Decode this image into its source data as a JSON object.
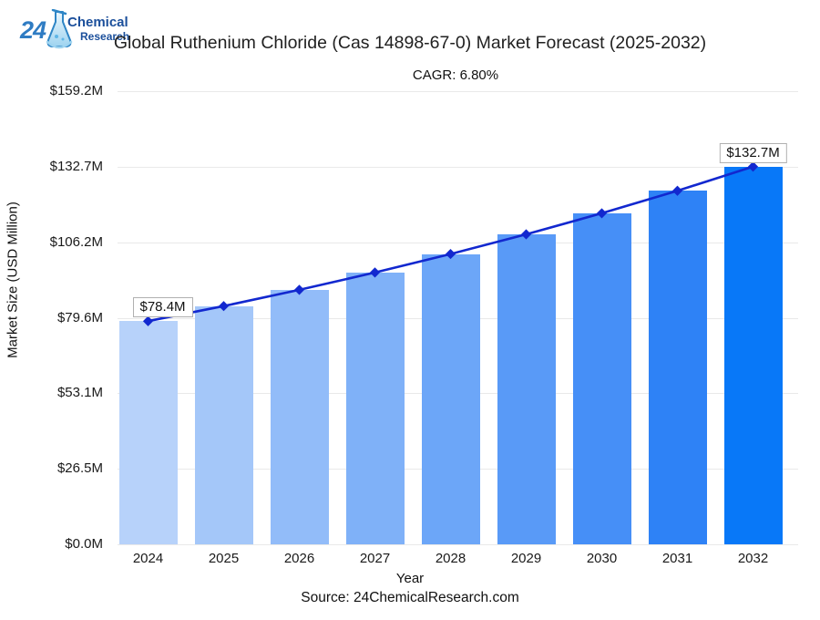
{
  "logo": {
    "number": "24",
    "line1": "Chemical",
    "line2": "Research"
  },
  "header": {
    "title": "Global Ruthenium Chloride (Cas 14898-67-0) Market Forecast (2025-2032)",
    "subtitle": "CAGR: 6.80%"
  },
  "chart_data": {
    "type": "bar",
    "categories": [
      "2024",
      "2025",
      "2026",
      "2027",
      "2028",
      "2029",
      "2030",
      "2031",
      "2032"
    ],
    "series": [
      {
        "name": "Market Size",
        "values": [
          78.4,
          83.7,
          89.4,
          95.5,
          102.0,
          108.9,
          116.3,
          124.2,
          132.7
        ]
      }
    ],
    "title": "Global Ruthenium Chloride (Cas 14898-67-0) Market Forecast (2025-2032)",
    "subtitle": "CAGR: 6.80%",
    "xlabel": "Year",
    "ylabel": "Market Size (USD Million)",
    "ylim": [
      0,
      159.2
    ],
    "grid": "horizontal",
    "yticks": [
      {
        "value": 0.0,
        "label": "$0.0M"
      },
      {
        "value": 26.5,
        "label": "$26.5M"
      },
      {
        "value": 53.1,
        "label": "$53.1M"
      },
      {
        "value": 79.6,
        "label": "$79.6M"
      },
      {
        "value": 106.2,
        "label": "$106.2M"
      },
      {
        "value": 132.7,
        "label": "$132.7M"
      },
      {
        "value": 159.2,
        "label": "$159.2M"
      }
    ],
    "annotations": [
      {
        "index": 0,
        "text": "$78.4M",
        "align": "left"
      },
      {
        "index": 8,
        "text": "$132.7M",
        "align": "center"
      }
    ],
    "bar_colors": [
      "#b7d2fa",
      "#a4c7f9",
      "#92bcf9",
      "#7fb1f8",
      "#6ca6f8",
      "#599af7",
      "#468ff7",
      "#2e82f6",
      "#0878f8"
    ],
    "line_color": "#1228cf",
    "grid_color": "#e9e9e9"
  },
  "footer": {
    "source": "Source: 24ChemicalResearch.com"
  }
}
